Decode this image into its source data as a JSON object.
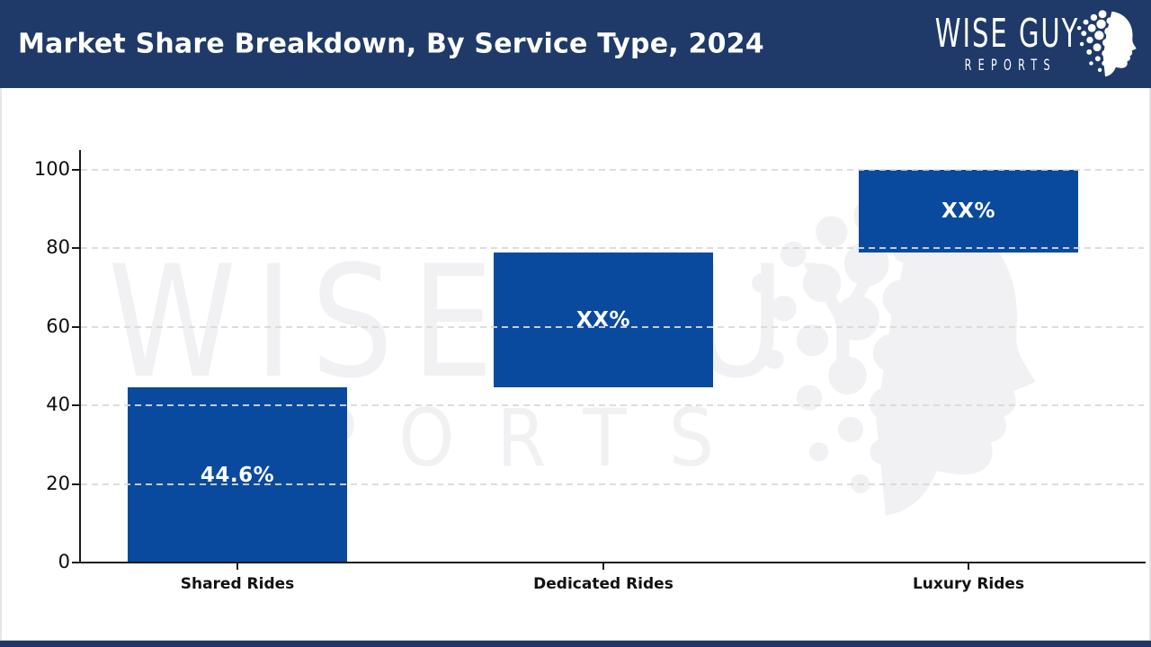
{
  "header": {
    "title": "Market Share Breakdown, By Service Type, 2024",
    "logo": {
      "line1": "WISE GUY",
      "line2": "REPORTS",
      "face_icon": "dotted-head-profile-icon"
    }
  },
  "watermark": {
    "line1": "WISE GUY",
    "line2": "REPORTS"
  },
  "colors": {
    "header_bg": "#1f3a68",
    "footer_bg": "#1f3a68",
    "bar": "#0a4a9e",
    "bar_label_text": "#ffffff",
    "axis": "#1a1a1a",
    "gridline": "#d9d9d9",
    "watermark": "#f1f1f3",
    "background": "#ffffff"
  },
  "chart_data": {
    "type": "bar",
    "subtype": "waterfall",
    "title": "Market Share Breakdown, By Service Type, 2024",
    "categories": [
      "Shared Rides",
      "Dedicated Rides",
      "Luxury Rides"
    ],
    "segments": [
      {
        "category": "Shared Rides",
        "start": 0,
        "end": 44.6,
        "label": "44.6%"
      },
      {
        "category": "Dedicated Rides",
        "start": 44.6,
        "end": 79,
        "label": "XX%"
      },
      {
        "category": "Luxury Rides",
        "start": 79,
        "end": 100,
        "label": "XX%"
      }
    ],
    "values_display": [
      "44.6%",
      "XX%",
      "XX%"
    ],
    "xlabel": "",
    "ylabel": "",
    "yticks": [
      0,
      20,
      40,
      60,
      80,
      100
    ],
    "ylim": [
      0,
      105
    ],
    "grid": true,
    "grid_style": "dashed",
    "legend": "none",
    "bar_color": "#0a4a9e"
  }
}
